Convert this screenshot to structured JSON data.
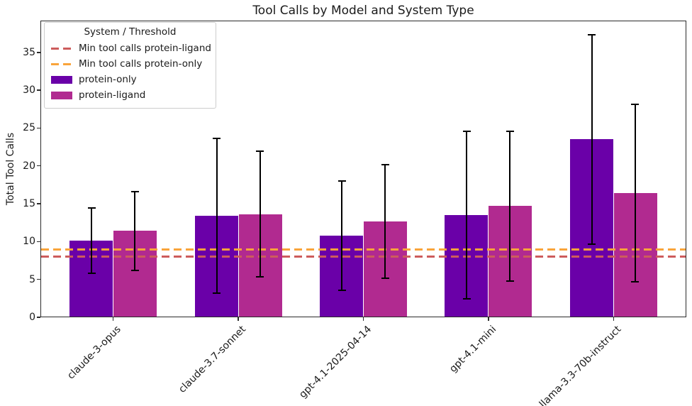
{
  "chart_data": {
    "type": "bar",
    "title": "Tool Calls by Model and System Type",
    "xlabel": "",
    "ylabel": "Total Tool Calls",
    "categories": [
      "claude-3-opus",
      "claude-3.7-sonnet",
      "gpt-4.1-2025-04-14",
      "gpt-4.1-mini",
      "llama-3.3-70b-instruct"
    ],
    "series": [
      {
        "name": "protein-only",
        "color": "#6A00A8",
        "values": [
          10.1,
          13.4,
          10.8,
          13.5,
          23.5
        ],
        "errors": [
          4.3,
          10.2,
          7.2,
          11.1,
          13.8
        ]
      },
      {
        "name": "protein-ligand",
        "color": "#B12A90",
        "values": [
          11.4,
          13.6,
          12.7,
          14.7,
          16.4
        ],
        "errors": [
          5.2,
          8.3,
          7.5,
          9.9,
          11.7
        ]
      }
    ],
    "thresholds": [
      {
        "label": "Min tool calls protein-ligand",
        "value": 8,
        "color": "#CD5C5C",
        "style": "dashed"
      },
      {
        "label": "Min tool calls protein-only",
        "value": 9,
        "color": "#F9A43B",
        "style": "dashed"
      }
    ],
    "legend": {
      "title": "System / Threshold",
      "position": "upper-left",
      "entries": [
        {
          "label": "Min tool calls protein-ligand",
          "swatch": "dashed-line",
          "color": "#CD5C5C"
        },
        {
          "label": "Min tool calls protein-only",
          "swatch": "dashed-line",
          "color": "#F9A43B"
        },
        {
          "label": "protein-only",
          "swatch": "patch",
          "color": "#6A00A8"
        },
        {
          "label": "protein-ligand",
          "swatch": "patch",
          "color": "#B12A90"
        }
      ]
    },
    "yticks": [
      0,
      5,
      10,
      15,
      20,
      25,
      30,
      35
    ],
    "ylim": [
      0,
      39.2
    ],
    "grid": false,
    "error_bar_color": "#000000",
    "background": "#ffffff"
  }
}
